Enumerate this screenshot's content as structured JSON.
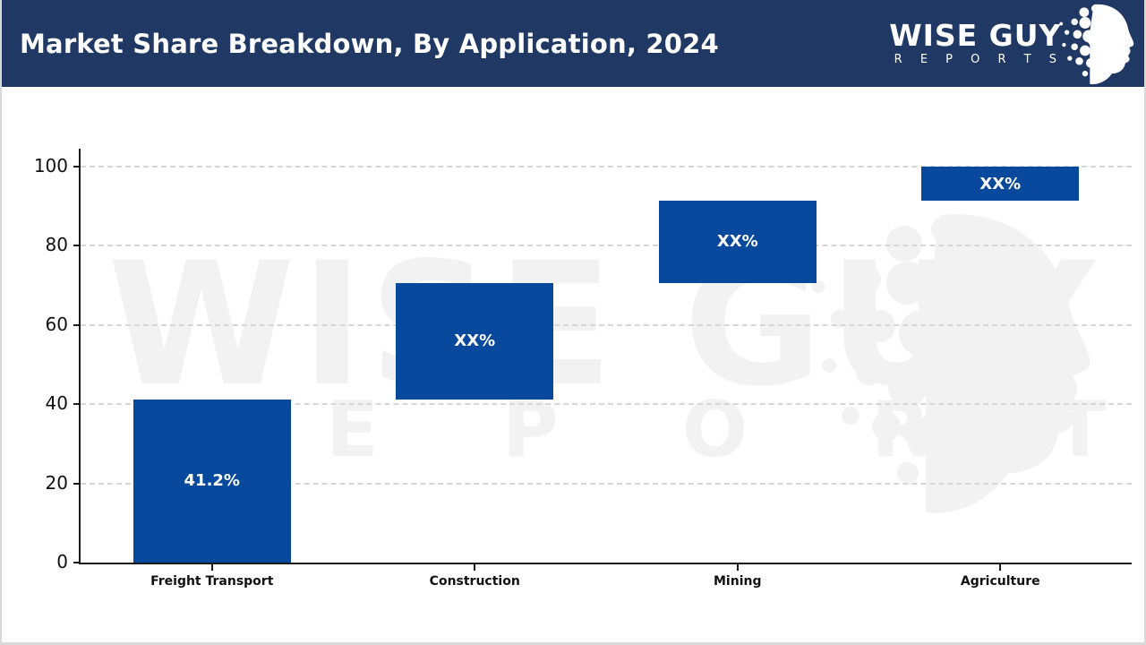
{
  "header": {
    "title": "Market Share Breakdown, By Application, 2024",
    "bg_color": "#1f3864",
    "logo": {
      "line1": "WISE GUY",
      "line2": "R E P O R T S"
    }
  },
  "watermark": {
    "line1": "WISE GUY",
    "line2": "R E P O R T S"
  },
  "chart_data": {
    "type": "bar",
    "subtype": "waterfall-stacked-breakdown",
    "title": "Market Share Breakdown, By Application, 2024",
    "categories": [
      "Freight Transport",
      "Construction",
      "Mining",
      "Agriculture"
    ],
    "series": [
      {
        "name": "Market Share",
        "segments": [
          {
            "category": "Freight Transport",
            "start": 0,
            "end": 41.2,
            "label": "41.2%"
          },
          {
            "category": "Construction",
            "start": 41.2,
            "end": 70.6,
            "label": "XX%"
          },
          {
            "category": "Mining",
            "start": 70.6,
            "end": 91.4,
            "label": "XX%"
          },
          {
            "category": "Agriculture",
            "start": 91.4,
            "end": 100,
            "label": "XX%"
          }
        ]
      }
    ],
    "bar_color": "#09499d",
    "label_color": "#ffffff",
    "xlabel": "",
    "ylabel": "",
    "ylim": [
      0,
      100
    ],
    "yticks": [
      0,
      20,
      40,
      60,
      80,
      100
    ],
    "grid": "horizontal-dashed",
    "grid_color": "#d6d6d6",
    "legend": "none"
  }
}
